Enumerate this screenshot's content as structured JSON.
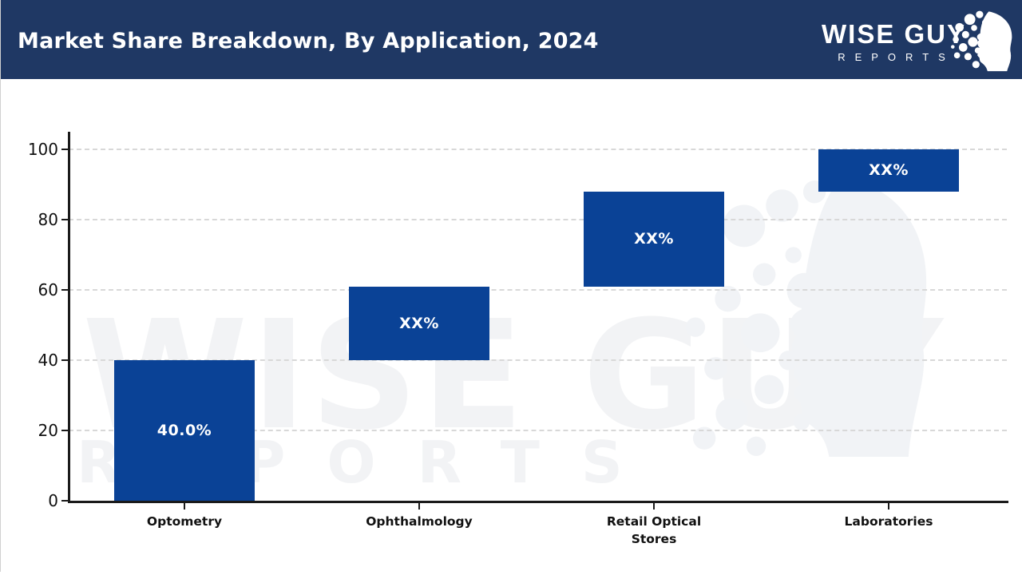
{
  "header": {
    "title": "Market Share Breakdown, By Application, 2024",
    "logo": {
      "line1": "WISE GUY",
      "line2": "REPORTS"
    }
  },
  "watermark": {
    "line1": "WISE GUY",
    "line2": "REPORTS"
  },
  "colors": {
    "header_bg": "#1f3864",
    "bar": "#0a4296",
    "bar_label": "#ffffff",
    "grid": "#d8d8d8",
    "axis": "#1a1a1a",
    "watermark": "#f2f3f5"
  },
  "chart_data": {
    "type": "bar",
    "subtype": "waterfall",
    "title": "Market Share Breakdown, By Application, 2024",
    "xlabel": "",
    "ylabel": "",
    "ylim": [
      0,
      100
    ],
    "yticks": [
      0,
      20,
      40,
      60,
      80,
      100
    ],
    "grid": "horizontal-dashed",
    "legend": "none",
    "categories": [
      "Optometry",
      "Ophthalmology",
      "Retail Optical Stores",
      "Laboratories"
    ],
    "segments": [
      {
        "category": "Optometry",
        "start": 0,
        "end": 40,
        "value": 40,
        "label": "40.0%"
      },
      {
        "category": "Ophthalmology",
        "start": 40,
        "end": 61,
        "value": 21,
        "label": "XX%"
      },
      {
        "category": "Retail Optical Stores",
        "start": 61,
        "end": 88,
        "value": 27,
        "label": "XX%"
      },
      {
        "category": "Laboratories",
        "start": 88,
        "end": 100,
        "value": 12,
        "label": "XX%"
      }
    ]
  }
}
